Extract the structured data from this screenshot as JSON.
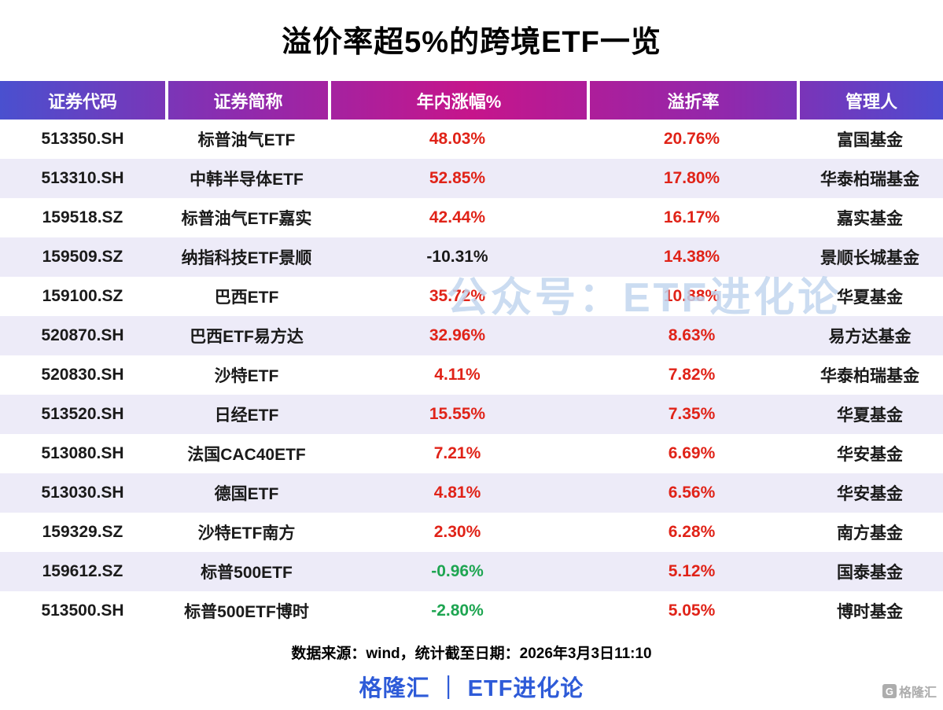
{
  "title": "溢价率超5%的跨境ETF一览",
  "watermark": "公众号：ETF进化论",
  "chart_data": {
    "type": "table",
    "title": "溢价率超5%的跨境ETF一览",
    "columns": [
      "证券代码",
      "证券简称",
      "年内涨幅%",
      "溢折率",
      "管理人"
    ],
    "rows": [
      {
        "code": "513350.SH",
        "name": "标普油气ETF",
        "ytd_change": "48.03%",
        "ytd_color": "red",
        "premium": "20.76%",
        "manager": "富国基金"
      },
      {
        "code": "513310.SH",
        "name": "中韩半导体ETF",
        "ytd_change": "52.85%",
        "ytd_color": "red",
        "premium": "17.80%",
        "manager": "华泰柏瑞基金"
      },
      {
        "code": "159518.SZ",
        "name": "标普油气ETF嘉实",
        "ytd_change": "42.44%",
        "ytd_color": "red",
        "premium": "16.17%",
        "manager": "嘉实基金"
      },
      {
        "code": "159509.SZ",
        "name": "纳指科技ETF景顺",
        "ytd_change": "-10.31%",
        "ytd_color": "dark",
        "premium": "14.38%",
        "manager": "景顺长城基金"
      },
      {
        "code": "159100.SZ",
        "name": "巴西ETF",
        "ytd_change": "35.72%",
        "ytd_color": "red",
        "premium": "10.88%",
        "manager": "华夏基金"
      },
      {
        "code": "520870.SH",
        "name": "巴西ETF易方达",
        "ytd_change": "32.96%",
        "ytd_color": "red",
        "premium": "8.63%",
        "manager": "易方达基金"
      },
      {
        "code": "520830.SH",
        "name": "沙特ETF",
        "ytd_change": "4.11%",
        "ytd_color": "red",
        "premium": "7.82%",
        "manager": "华泰柏瑞基金"
      },
      {
        "code": "513520.SH",
        "name": "日经ETF",
        "ytd_change": "15.55%",
        "ytd_color": "red",
        "premium": "7.35%",
        "manager": "华夏基金"
      },
      {
        "code": "513080.SH",
        "name": "法国CAC40ETF",
        "ytd_change": "7.21%",
        "ytd_color": "red",
        "premium": "6.69%",
        "manager": "华安基金"
      },
      {
        "code": "513030.SH",
        "name": "德国ETF",
        "ytd_change": "4.81%",
        "ytd_color": "red",
        "premium": "6.56%",
        "manager": "华安基金"
      },
      {
        "code": "159329.SZ",
        "name": "沙特ETF南方",
        "ytd_change": "2.30%",
        "ytd_color": "red",
        "premium": "6.28%",
        "manager": "南方基金"
      },
      {
        "code": "159612.SZ",
        "name": "标普500ETF",
        "ytd_change": "-0.96%",
        "ytd_color": "green",
        "premium": "5.12%",
        "manager": "国泰基金"
      },
      {
        "code": "513500.SH",
        "name": "标普500ETF博时",
        "ytd_change": "-2.80%",
        "ytd_color": "green",
        "premium": "5.05%",
        "manager": "博时基金"
      }
    ]
  },
  "footer": {
    "source_note": "数据来源：wind，统计截至日期：2026年3月3日11:10",
    "brand_line": "格隆汇 ｜ ETF进化论",
    "corner_logo_icon": "G",
    "corner_logo_text": "格隆汇"
  },
  "colors": {
    "positive_red": "#E02318",
    "negative_green": "#1EA551",
    "neutral_dark": "#1A1A1A",
    "premium_red": "#E02318",
    "header_gradient_start": "#4A50CF",
    "header_gradient_mid": "#C6158B",
    "header_gradient_end": "#4E4BD0",
    "alt_row_bg": "#EDEBF8",
    "brand_blue": "#2E5BD8",
    "watermark_blue": "#C3D6EF"
  }
}
